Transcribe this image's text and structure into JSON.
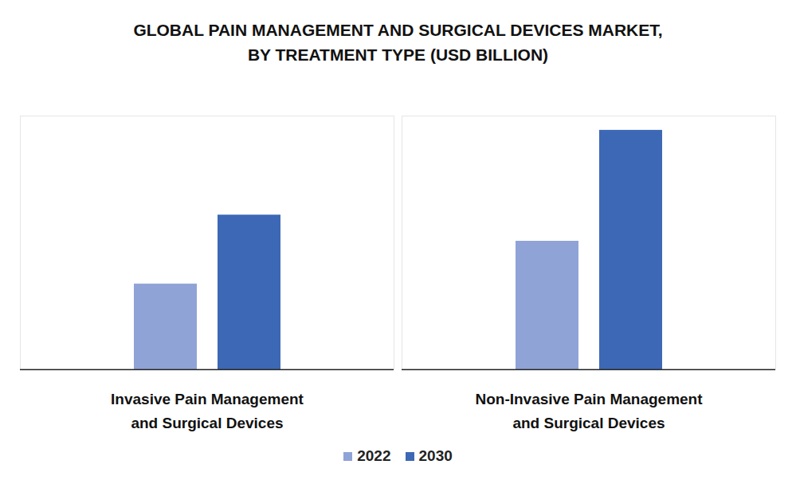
{
  "chart_data": {
    "type": "bar",
    "title": "GLOBAL PAIN MANAGEMENT AND SURGICAL DEVICES MARKET,\nBY TREATMENT TYPE (USD BILLION)",
    "categories": [
      "Invasive Pain Management\nand Surgical Devices",
      "Non-Invasive Pain Management\nand Surgical Devices"
    ],
    "series": [
      {
        "name": "2022",
        "color": "#8fa3d6",
        "values": [
          10.8,
          16.2
        ]
      },
      {
        "name": "2030",
        "color": "#3d68b5",
        "values": [
          19.5,
          30.2
        ]
      }
    ],
    "ylim": [
      0,
      32
    ],
    "grid": false,
    "tick_labels": "x",
    "data_labels": false,
    "legend": "bottom"
  }
}
